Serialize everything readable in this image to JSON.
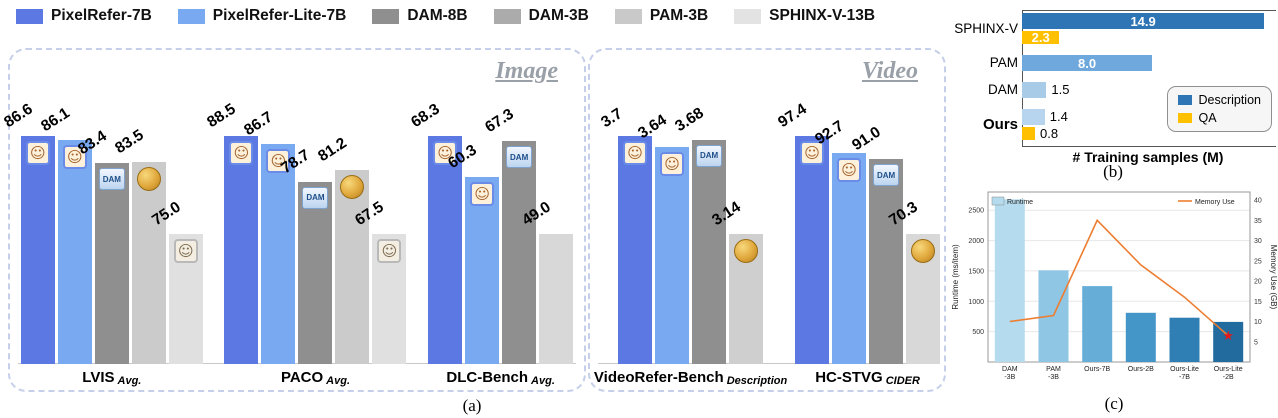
{
  "icons": {
    "pixelrefer_glyph": "☺",
    "sphinx_glyph": "☺",
    "dam_badge_text": "DAM"
  },
  "chart_data": [
    {
      "type": "bar",
      "caption": "(a)",
      "legend": [
        {
          "label": "PixelRefer-7B",
          "color": "#5c78e2"
        },
        {
          "label": "PixelRefer-Lite-7B",
          "color": "#79a9f1"
        },
        {
          "label": "DAM-8B",
          "color": "#8f8f8f"
        },
        {
          "label": "DAM-3B",
          "color": "#ababab"
        },
        {
          "label": "PAM-3B",
          "color": "#c9c9c9"
        },
        {
          "label": "SPHINX-V-13B",
          "color": "#e3e3e3"
        }
      ],
      "sections": [
        {
          "label": "Image",
          "groups": [
            {
              "name": "LVIS",
              "sub": "Avg.",
              "bars": [
                {
                  "series": "PixelRefer-7B",
                  "value": 86.6,
                  "label": "86.6",
                  "color": "#5c78e2",
                  "icon": "pixelrefer-icon"
                },
                {
                  "series": "PixelRefer-Lite-7B",
                  "value": 86.1,
                  "label": "86.1",
                  "color": "#79a9f1",
                  "icon": "pixelrefer-icon"
                },
                {
                  "series": "DAM-8B",
                  "value": 83.4,
                  "label": "83.4",
                  "color": "#8f8f8f",
                  "icon": "dam-icon"
                },
                {
                  "series": "PAM-3B",
                  "value": 83.5,
                  "label": "83.5",
                  "color": "#cbcbcb",
                  "icon": "pam-coin-icon"
                },
                {
                  "series": "SPHINX-V-13B",
                  "value": 75.0,
                  "label": "75.0",
                  "color": "#e0e0e0",
                  "icon": "sphinx-icon"
                }
              ]
            },
            {
              "name": "PACO",
              "sub": "Avg.",
              "bars": [
                {
                  "series": "PixelRefer-7B",
                  "value": 88.5,
                  "label": "88.5",
                  "color": "#5c78e2",
                  "icon": "pixelrefer-icon"
                },
                {
                  "series": "PixelRefer-Lite-7B",
                  "value": 86.7,
                  "label": "86.7",
                  "color": "#79a9f1",
                  "icon": "pixelrefer-icon"
                },
                {
                  "series": "DAM-8B",
                  "value": 78.7,
                  "label": "78.7",
                  "color": "#8f8f8f",
                  "icon": "dam-icon"
                },
                {
                  "series": "PAM-3B",
                  "value": 81.2,
                  "label": "81.2",
                  "color": "#cbcbcb",
                  "icon": "pam-coin-icon"
                },
                {
                  "series": "SPHINX-V-13B",
                  "value": 67.5,
                  "label": "67.5",
                  "color": "#e0e0e0",
                  "icon": "sphinx-icon"
                }
              ]
            },
            {
              "name": "DLC-Bench",
              "sub": "Avg.",
              "bars": [
                {
                  "series": "PixelRefer-7B",
                  "value": 68.3,
                  "label": "68.3",
                  "color": "#5c78e2",
                  "icon": "pixelrefer-icon"
                },
                {
                  "series": "PixelRefer-Lite-7B",
                  "value": 60.3,
                  "label": "60.3",
                  "color": "#79a9f1",
                  "icon": "pixelrefer-icon"
                },
                {
                  "series": "DAM-8B",
                  "value": 67.3,
                  "label": "67.3",
                  "color": "#8f8f8f",
                  "icon": "dam-icon"
                },
                {
                  "series": "SPHINX-V-13B",
                  "value": 49.0,
                  "label": "49.0",
                  "color": "#d8d8d8",
                  "icon": null
                }
              ]
            }
          ]
        },
        {
          "label": "Video",
          "groups": [
            {
              "name": "VideoRefer-Bench",
              "sub": "Description",
              "bars": [
                {
                  "series": "PixelRefer-7B",
                  "value": 3.7,
                  "label": "3.7",
                  "color": "#5c78e2",
                  "icon": "pixelrefer-icon"
                },
                {
                  "series": "PixelRefer-Lite-7B",
                  "value": 3.64,
                  "label": "3.64",
                  "color": "#79a9f1",
                  "icon": "pixelrefer-icon"
                },
                {
                  "series": "DAM-8B",
                  "value": 3.68,
                  "label": "3.68",
                  "color": "#8f8f8f",
                  "icon": "dam-icon"
                },
                {
                  "series": "PAM-3B",
                  "value": 3.14,
                  "label": "3.14",
                  "color": "#cfcfcf",
                  "icon": "pam-coin-icon"
                }
              ]
            },
            {
              "name": "HC-STVG",
              "sub": "CIDER",
              "bars": [
                {
                  "series": "PixelRefer-7B",
                  "value": 97.4,
                  "label": "97.4",
                  "color": "#5c78e2",
                  "icon": "pixelrefer-icon"
                },
                {
                  "series": "PixelRefer-Lite-7B",
                  "value": 92.7,
                  "label": "92.7",
                  "color": "#79a9f1",
                  "icon": "pixelrefer-icon"
                },
                {
                  "series": "DAM-8B",
                  "value": 91.0,
                  "label": "91.0",
                  "color": "#8f8f8f",
                  "icon": "dam-icon"
                },
                {
                  "series": "PAM-3B",
                  "value": 70.3,
                  "label": "70.3",
                  "color": "#d8d8d8",
                  "icon": "pam-coin-icon"
                }
              ]
            }
          ]
        }
      ]
    },
    {
      "type": "bar",
      "orientation": "horizontal",
      "caption": "(b)",
      "xlabel": "# Training samples (M)",
      "xmax": 15.5,
      "legend": [
        {
          "label": "Description",
          "color": "#2e75b6"
        },
        {
          "label": "QA",
          "color": "#ffc000"
        }
      ],
      "rows": [
        {
          "name": "SPHINX-V",
          "bold": false,
          "bars": [
            {
              "kind": "description",
              "value": 14.9,
              "label": "14.9",
              "color": "#2e75b6",
              "label_inside": true
            },
            {
              "kind": "qa",
              "value": 2.3,
              "label": "2.3",
              "color": "#ffc000",
              "label_inside": true
            }
          ]
        },
        {
          "name": "PAM",
          "bold": false,
          "bars": [
            {
              "kind": "description",
              "value": 8.0,
              "label": "8.0",
              "color": "#6fa8dc",
              "label_inside": true
            }
          ]
        },
        {
          "name": "DAM",
          "bold": false,
          "bars": [
            {
              "kind": "description",
              "value": 1.5,
              "label": "1.5",
              "color": "#a8cbe8",
              "label_inside": false
            }
          ]
        },
        {
          "name": "Ours",
          "bold": true,
          "bars": [
            {
              "kind": "description",
              "value": 1.4,
              "label": "1.4",
              "color": "#b8d5ef",
              "label_inside": false
            },
            {
              "kind": "qa",
              "value": 0.8,
              "label": "0.8",
              "color": "#ffc000",
              "label_inside": false
            }
          ]
        }
      ]
    },
    {
      "type": "bar+line",
      "caption": "(c)",
      "categories": [
        "DAM\n-3B",
        "PAM\n-3B",
        "Ours-7B",
        "Ours-2B",
        "Ours-Lite\n-7B",
        "Ours-Lite\n-2B"
      ],
      "runtime": [
        2680,
        1510,
        1250,
        810,
        730,
        660
      ],
      "memory": [
        10,
        11.5,
        35,
        24,
        16,
        6.5
      ],
      "bar_colors": [
        "#b5dcee",
        "#8ec6e4",
        "#66aed8",
        "#4496c9",
        "#2f7fb5",
        "#226b9e"
      ],
      "ylabel_left": "Runtime (ms/item)",
      "ylabel_right": "Memory Use (GB)",
      "yticks_left": [
        500,
        1000,
        1500,
        2000,
        2500
      ],
      "yticks_right": [
        5,
        10,
        15,
        20,
        25,
        30,
        35,
        40
      ],
      "ylim_left": [
        0,
        2800
      ],
      "ylim_right": [
        0,
        42
      ],
      "legend_runtime": "Runtime",
      "legend_memory": "Memory Use",
      "line_color": "#ed7d31",
      "star_color": "#e21c1c"
    }
  ]
}
